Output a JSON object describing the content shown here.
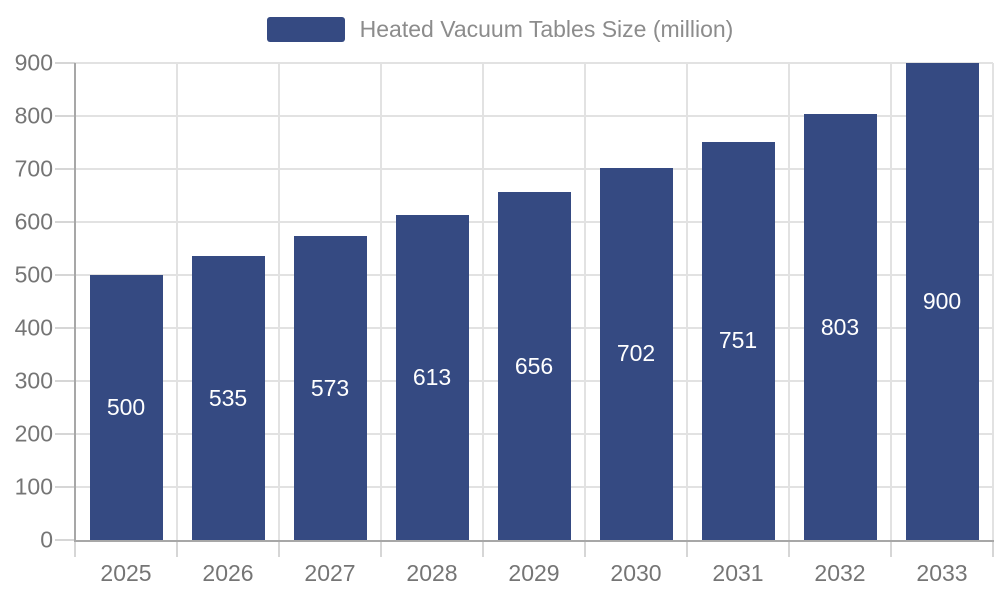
{
  "chart_data": {
    "type": "bar",
    "title": "",
    "categories": [
      "2025",
      "2026",
      "2027",
      "2028",
      "2029",
      "2030",
      "2031",
      "2032",
      "2033"
    ],
    "series": [
      {
        "name": "Heated Vacuum Tables Size (million)",
        "values": [
          500,
          535,
          573,
          613,
          656,
          702,
          751,
          803,
          900
        ],
        "color": "#354A82"
      }
    ],
    "value_labels_shown": true,
    "yticks": [
      0,
      100,
      200,
      300,
      400,
      500,
      600,
      700,
      800,
      900
    ],
    "ylim": [
      0,
      900
    ],
    "grid": true,
    "legend_position": "top-center",
    "colors": {
      "bar": "#354A82",
      "gridline": "#E2E2E2",
      "tick": "#D6D6D6",
      "axis_line": "#A7A7A7",
      "axis_text": "#757575",
      "legend_text": "#8C8C8C",
      "value_text": "#FFFFFF"
    }
  }
}
